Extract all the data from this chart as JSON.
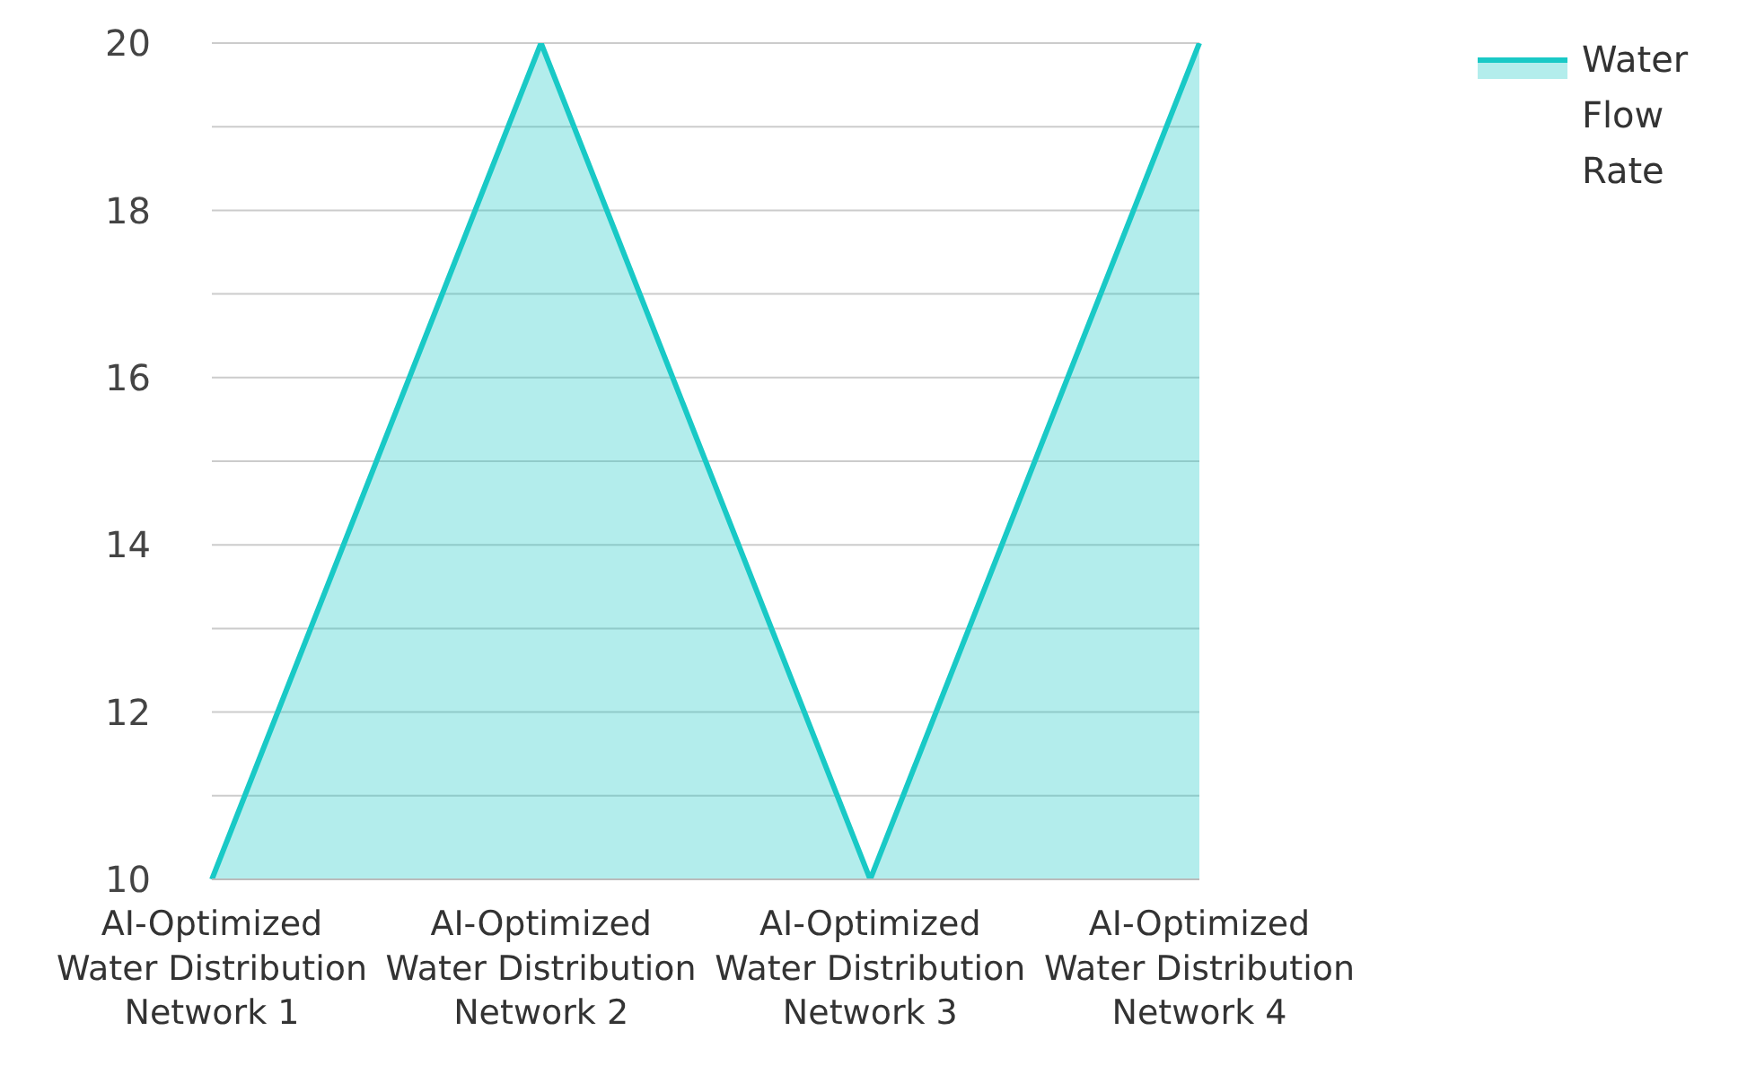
{
  "chart_data": {
    "type": "area",
    "categories": [
      "AI-Optimized Water Distribution Network 1",
      "AI-Optimized Water Distribution Network 2",
      "AI-Optimized Water Distribution Network 3",
      "AI-Optimized Water Distribution Network 4"
    ],
    "series": [
      {
        "name": "Water Flow Rate",
        "color": "#19c9c6",
        "values": [
          10,
          20,
          10,
          20
        ]
      }
    ],
    "ylim": [
      10,
      20
    ],
    "yticks": [
      10,
      {
        "value": 11,
        "label": null
      },
      12,
      {
        "value": 13,
        "label": null
      },
      14,
      {
        "value": 15,
        "label": null
      },
      16,
      {
        "value": 17,
        "label": null
      },
      18,
      {
        "value": 19,
        "label": null
      },
      20
    ],
    "grid": "y",
    "legend": "top right"
  }
}
